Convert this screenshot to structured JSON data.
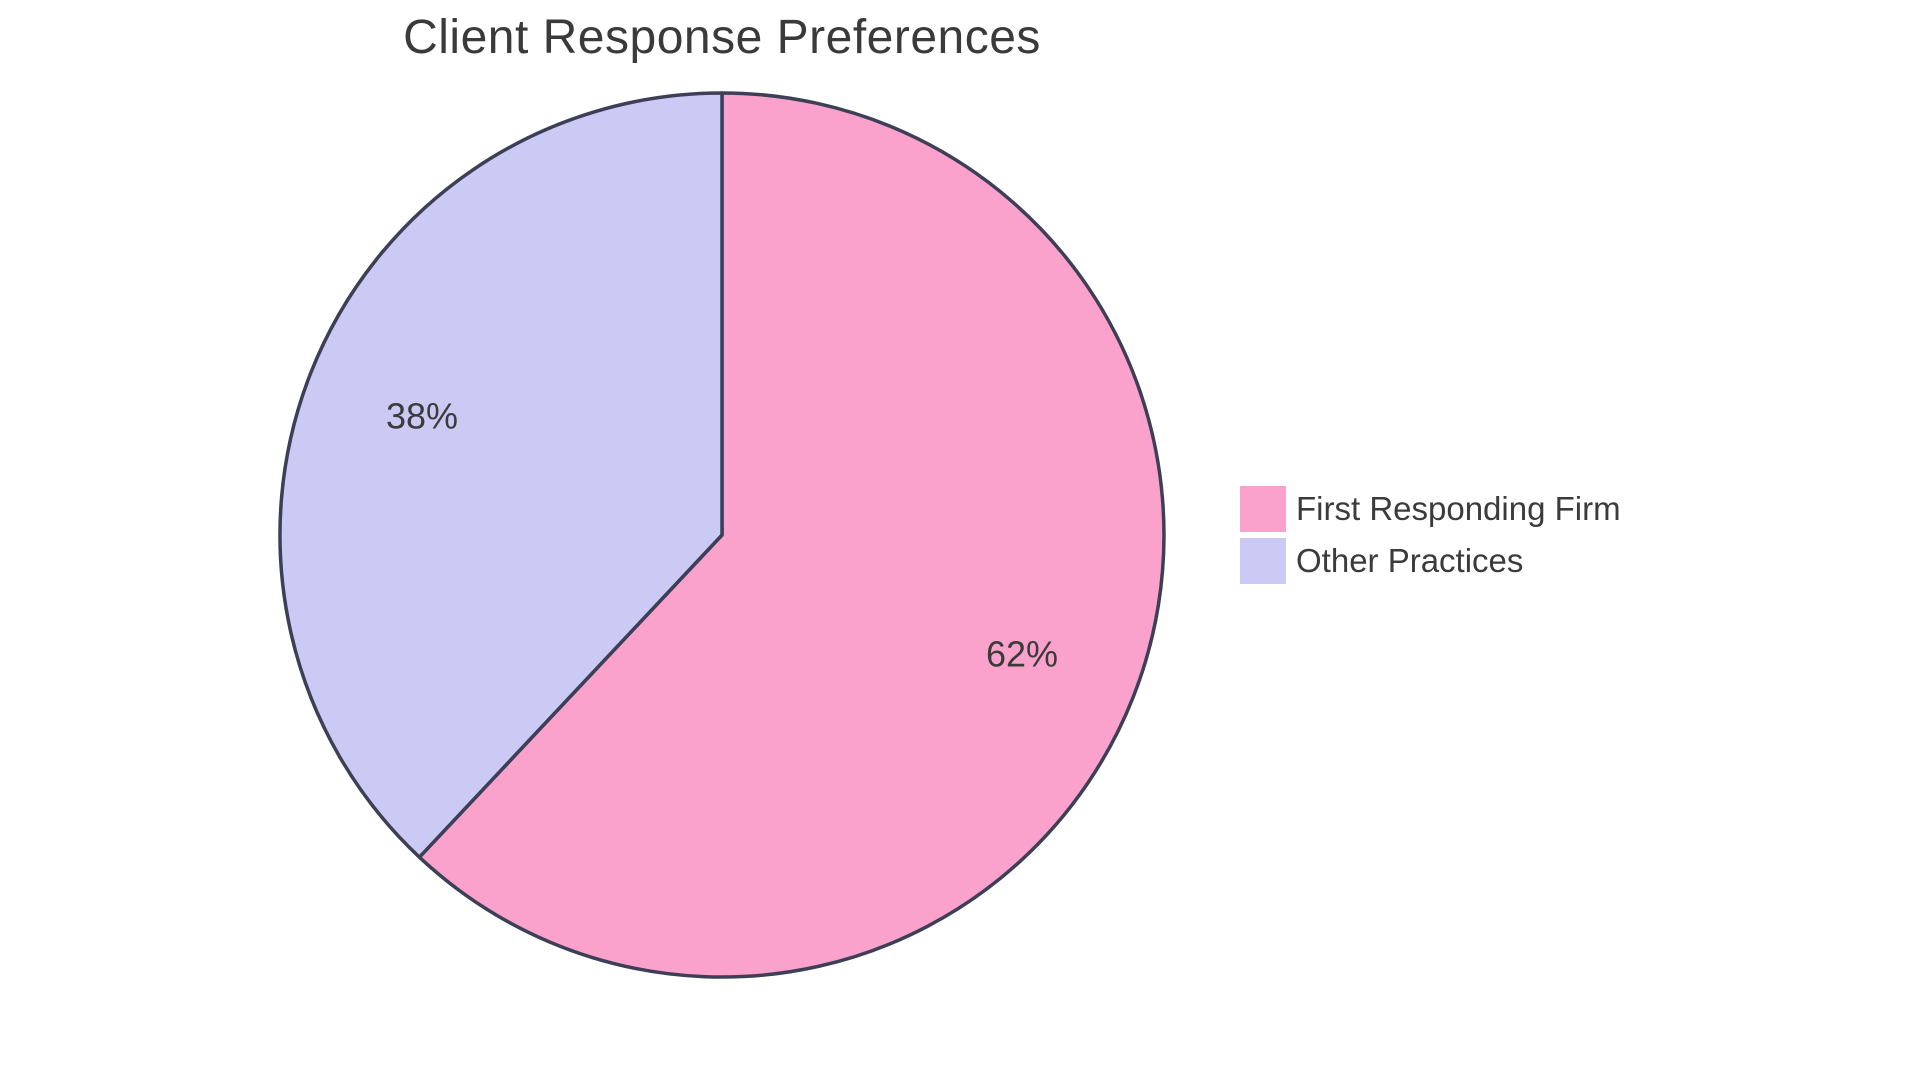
{
  "title": "Client Response Preferences",
  "chart_data": {
    "type": "pie",
    "title": "Client Response Preferences",
    "slices": [
      {
        "label": "First Responding Firm",
        "value": 62,
        "pct_label": "62%",
        "color": "#FAA2CC"
      },
      {
        "label": "Other Practices",
        "value": 38,
        "pct_label": "38%",
        "color": "#CBCAF5"
      }
    ],
    "start_angle_deg": 0,
    "direction": "clockwise",
    "stroke_color": "#3D3F56",
    "stroke_width": 3.5,
    "label_color": "#3B3B3B",
    "title_color": "#3A3A3A",
    "background_color": "#FFFFFF",
    "legend_position": "right",
    "labels_inside": true
  }
}
